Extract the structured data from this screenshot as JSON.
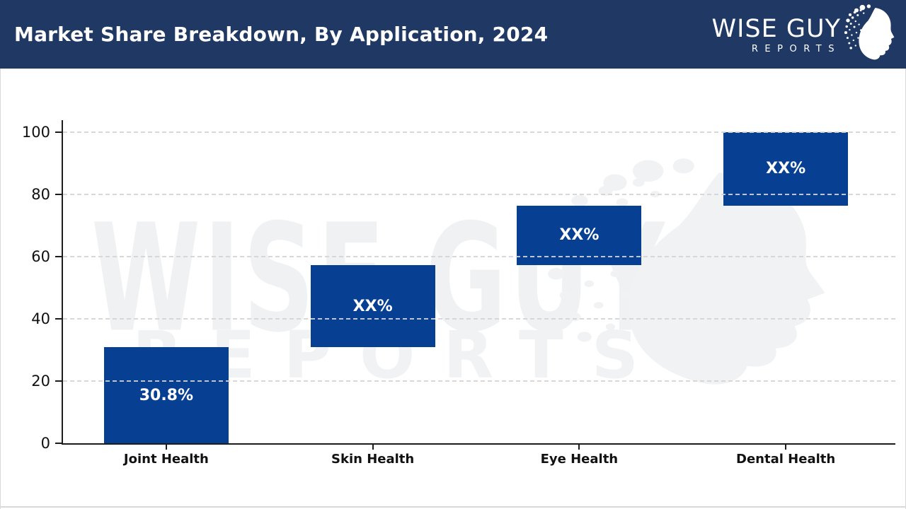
{
  "header": {
    "title": "Market Share Breakdown, By Application, 2024",
    "logo": {
      "line1": "WISE GUY",
      "line2": "REPORTS"
    }
  },
  "watermark": {
    "line1": "WISE GUY",
    "line2": "REPORTS"
  },
  "chart_data": {
    "type": "bar",
    "subtype": "waterfall",
    "title": "Market Share Breakdown, By Application, 2024",
    "categories": [
      "Joint Health",
      "Skin Health",
      "Eye Health",
      "Dental Health"
    ],
    "segments": [
      {
        "category": "Joint Health",
        "start": 0,
        "end": 30.8,
        "value": 30.8,
        "label": "30.8%"
      },
      {
        "category": "Skin Health",
        "start": 30.8,
        "end": 57.3,
        "value": 26.5,
        "label": "XX%"
      },
      {
        "category": "Eye Health",
        "start": 57.3,
        "end": 76.4,
        "value": 19.1,
        "label": "XX%"
      },
      {
        "category": "Dental Health",
        "start": 76.4,
        "end": 100,
        "value": 23.6,
        "label": "XX%"
      }
    ],
    "yticks": [
      0,
      20,
      40,
      60,
      80,
      100
    ],
    "ylim": [
      0,
      104
    ],
    "xlabel": "",
    "ylabel": "",
    "legend": "none",
    "grid": "horizontal-dashed",
    "bar_color": "#074092",
    "bar_label_color": "#ffffff"
  },
  "colors": {
    "header_bg": "#1f3864",
    "bar": "#074092",
    "grid": "#d4d4d4",
    "axis": "#1c1c1c",
    "watermark": "#f1f2f4",
    "page_border": "#d9d9d9"
  }
}
